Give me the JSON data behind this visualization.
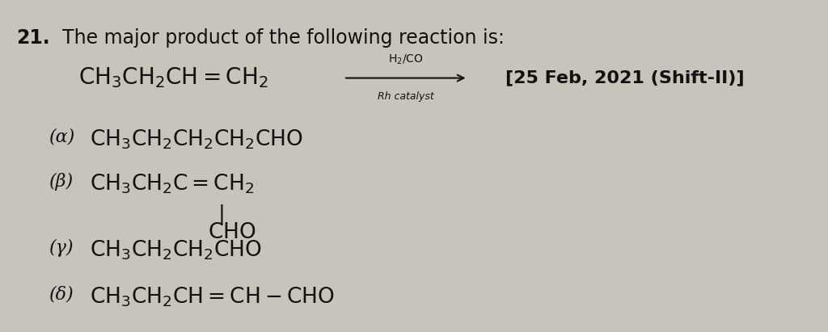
{
  "background_color": "#c8c4bc",
  "question_number": "21.",
  "question_text": "The major product of the following reaction is:",
  "arrow_above": "H$_2$/CO",
  "arrow_below": "Rh catalyst",
  "date_tag": "[25 Feb, 2021 (Shift-II)]",
  "text_color": "#111111",
  "fs_title": 17,
  "fs_chem": 17,
  "fs_label": 16,
  "fs_arrow": 10
}
